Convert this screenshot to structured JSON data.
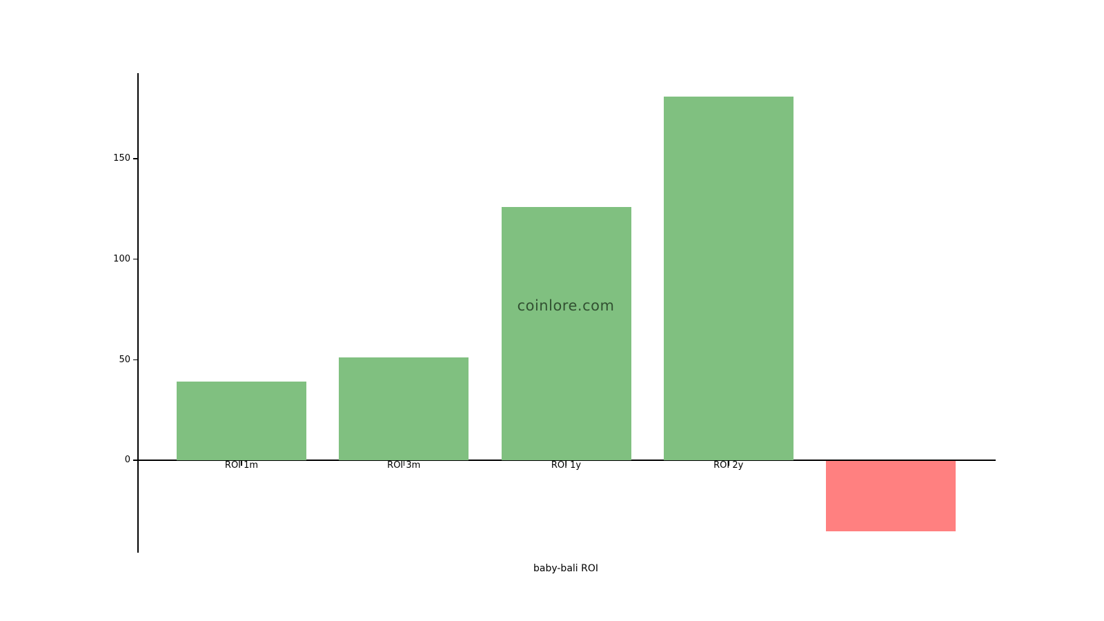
{
  "chart_data": {
    "type": "bar",
    "title": "baby-bali ROI",
    "watermark": "coinlore.com",
    "categories": [
      "ROI 1m",
      "ROI 3m",
      "ROI 1y",
      "ROI 2y",
      ""
    ],
    "values": [
      39,
      51,
      126,
      181,
      -35
    ],
    "bar_colors": [
      "#80c080",
      "#80c080",
      "#80c080",
      "#80c080",
      "#ff8080"
    ],
    "positive_color": "#80c080",
    "negative_color": "#ff8080",
    "yticks": [
      0,
      50,
      100,
      150
    ],
    "ylim": [
      -46,
      192.5
    ],
    "xlabel": "",
    "ylabel": "",
    "grid": false,
    "legend": "none",
    "axis_color": "#000000",
    "background_color": "#ffffff"
  }
}
